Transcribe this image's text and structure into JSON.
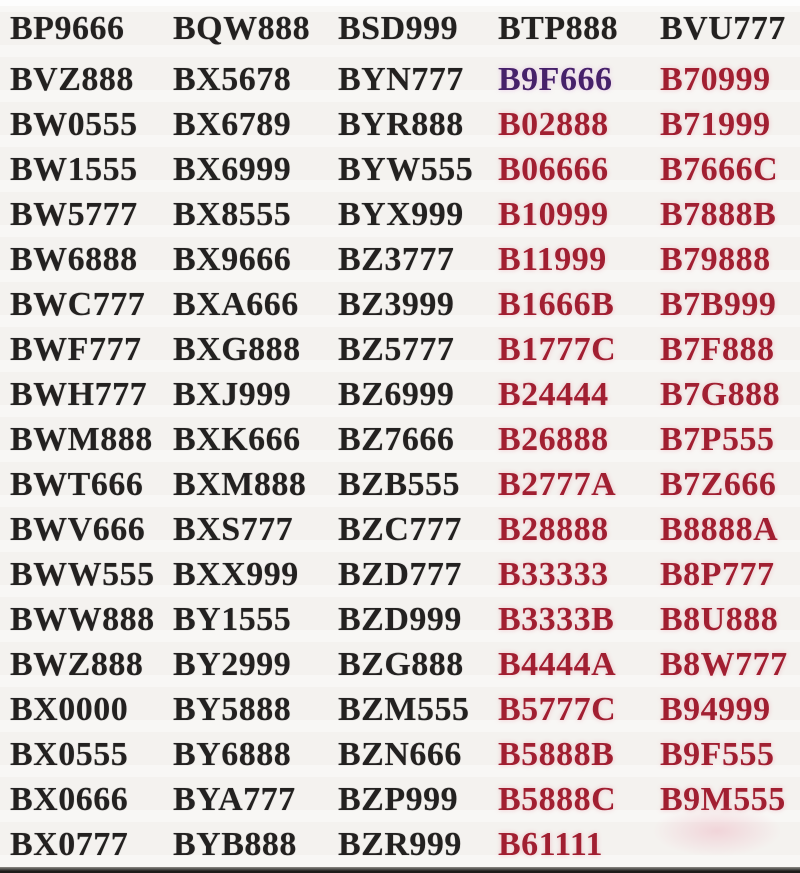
{
  "page": {
    "background_color": "#f4f2ef",
    "bottom_bar_color": "#1d1c1a"
  },
  "colors": {
    "black": "#232120",
    "red": "#a11f31",
    "purple": "#46216a"
  },
  "table": {
    "headers": [
      "BP9666",
      "BQW888",
      "BSD999",
      "BTP888",
      "BVU777"
    ],
    "column_colors": [
      "black",
      "black",
      "black",
      "red",
      "red"
    ],
    "color_overrides": [
      {
        "row": 0,
        "col": 3,
        "color": "purple"
      }
    ],
    "rows": [
      [
        "BVZ888",
        "BX5678",
        "BYN777",
        "B9F666",
        "B70999"
      ],
      [
        "BW0555",
        "BX6789",
        "BYR888",
        "B02888",
        "B71999"
      ],
      [
        "BW1555",
        "BX6999",
        "BYW555",
        "B06666",
        "B7666C"
      ],
      [
        "BW5777",
        "BX8555",
        "BYX999",
        "B10999",
        "B7888B"
      ],
      [
        "BW6888",
        "BX9666",
        "BZ3777",
        "B11999",
        "B79888"
      ],
      [
        "BWC777",
        "BXA666",
        "BZ3999",
        "B1666B",
        "B7B999"
      ],
      [
        "BWF777",
        "BXG888",
        "BZ5777",
        "B1777C",
        "B7F888"
      ],
      [
        "BWH777",
        "BXJ999",
        "BZ6999",
        "B24444",
        "B7G888"
      ],
      [
        "BWM888",
        "BXK666",
        "BZ7666",
        "B26888",
        "B7P555"
      ],
      [
        "BWT666",
        "BXM888",
        "BZB555",
        "B2777A",
        "B7Z666"
      ],
      [
        "BWV666",
        "BXS777",
        "BZC777",
        "B28888",
        "B8888A"
      ],
      [
        "BWW555",
        "BXX999",
        "BZD777",
        "B33333",
        "B8P777"
      ],
      [
        "BWW888",
        "BY1555",
        "BZD999",
        "B3333B",
        "B8U888"
      ],
      [
        "BWZ888",
        "BY2999",
        "BZG888",
        "B4444A",
        "B8W777"
      ],
      [
        "BX0000",
        "BY5888",
        "BZM555",
        "B5777C",
        "B94999"
      ],
      [
        "BX0555",
        "BY6888",
        "BZN666",
        "B5888B",
        "B9F555"
      ],
      [
        "BX0666",
        "BYA777",
        "BZP999",
        "B5888C",
        "B9M555"
      ],
      [
        "BX0777",
        "BYB888",
        "BZR999",
        "B61111",
        ""
      ]
    ]
  }
}
